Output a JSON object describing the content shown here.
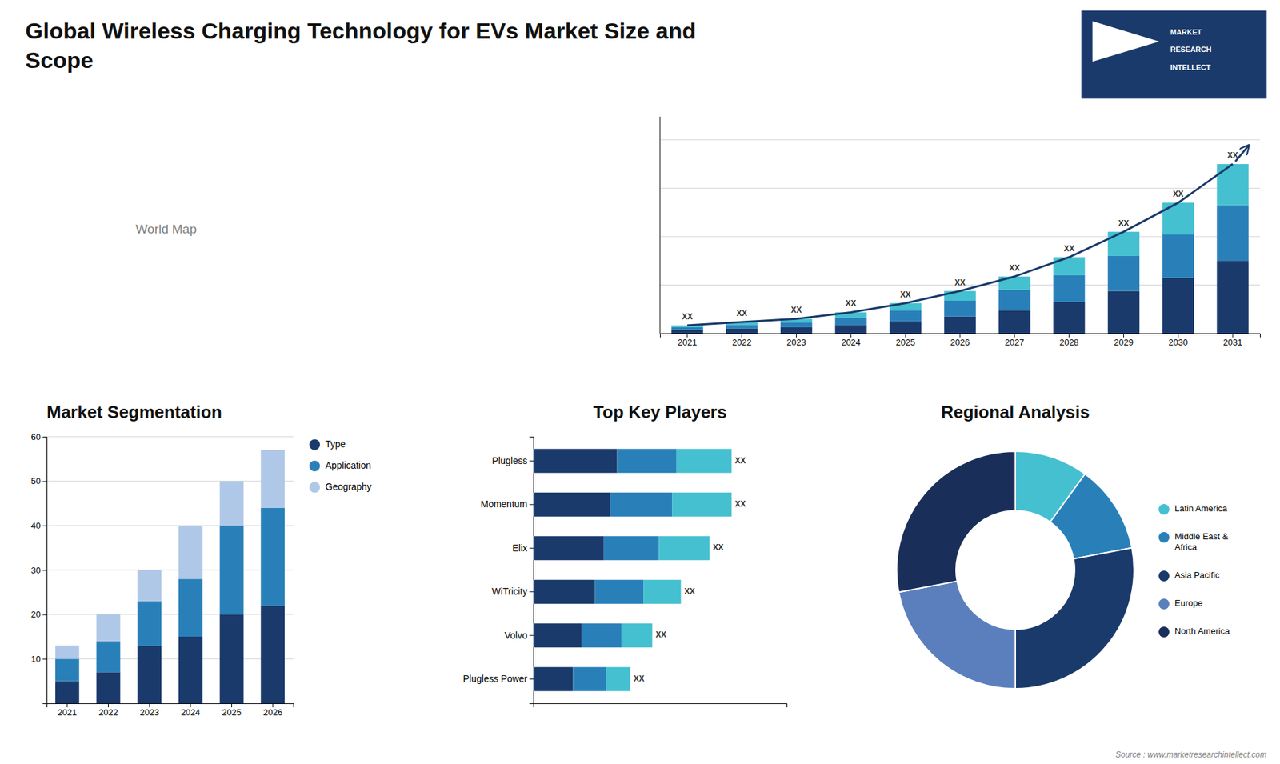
{
  "title": "Global Wireless Charging Technology for EVs Market Size and\nScope",
  "annotations": [
    "Source : www.marketresearchintellect.com",
    "MARKET",
    "RESEARCH",
    "INTELLECT"
  ],
  "chart_data": [
    {
      "type": "map",
      "annotations": [
        "World Map"
      ]
    },
    {
      "type": "bar",
      "stacked": true,
      "categories": [
        "2021",
        "2022",
        "2023",
        "2024",
        "2025",
        "2026",
        "2027",
        "2028",
        "2029",
        "2030",
        "2031"
      ],
      "series": [
        {
          "color": "#1a3a6b",
          "values": [
            1.5,
            2.0,
            2.5,
            3.5,
            5.0,
            7.0,
            9.5,
            13.0,
            17.5,
            23.0,
            30.0
          ]
        },
        {
          "color": "#2980b9",
          "values": [
            1.0,
            1.5,
            2.0,
            3.0,
            4.5,
            6.5,
            8.5,
            11.0,
            14.5,
            18.0,
            23.0
          ]
        },
        {
          "color": "#45c0d0",
          "values": [
            0.8,
            1.2,
            1.5,
            2.2,
            3.0,
            4.0,
            5.5,
            7.5,
            10.0,
            13.0,
            17.0
          ]
        },
        {
          "type": "line",
          "color": "#1a3a6b",
          "values": [
            3.3,
            4.7,
            6.0,
            8.7,
            12.5,
            17.5,
            23.5,
            31.5,
            42.0,
            54.0,
            70.0
          ],
          "value_labels": [
            "XX",
            "XX",
            "XX",
            "XX",
            "XX",
            "XX",
            "XX",
            "XX",
            "XX",
            "XX",
            "XX"
          ]
        }
      ],
      "ylim": [
        0,
        89.6
      ],
      "yticks": [
        0,
        20,
        40,
        60,
        80
      ],
      "grid": true,
      "tick_labels": "x"
    },
    {
      "type": "bar",
      "title": "Market Segmentation",
      "stacked": true,
      "categories": [
        "2021",
        "2022",
        "2023",
        "2024",
        "2025",
        "2026"
      ],
      "series": [
        {
          "name": "Type",
          "color": "#1a3a6b",
          "values": [
            5,
            7,
            13,
            15,
            20,
            22
          ]
        },
        {
          "name": "Application",
          "color": "#2980b9",
          "values": [
            5,
            7,
            10,
            13,
            20,
            22
          ]
        },
        {
          "name": "Geography",
          "color": "#b0c8e8",
          "values": [
            3,
            6,
            7,
            12,
            10,
            13
          ]
        }
      ],
      "ylim": [
        0,
        60
      ],
      "yticks": [
        10,
        20,
        30,
        40,
        50,
        60
      ],
      "grid": true,
      "legend": "right"
    },
    {
      "type": "bar",
      "title": "Top Key Players",
      "orientation": "horizontal",
      "stacked": true,
      "categories": [
        "Plugless",
        "Momentum",
        "Elix",
        "WiTricity",
        "Volvo",
        "Plugless Power"
      ],
      "series": [
        {
          "color": "#1a3a6b",
          "values": [
            0.38,
            0.35,
            0.32,
            0.28,
            0.22,
            0.18
          ]
        },
        {
          "color": "#2980b9",
          "values": [
            0.27,
            0.28,
            0.25,
            0.22,
            0.18,
            0.15
          ]
        },
        {
          "color": "#45c0d0",
          "values": [
            0.25,
            0.27,
            0.23,
            0.17,
            0.14,
            0.11
          ],
          "value_labels": [
            "XX",
            "XX",
            "XX",
            "XX",
            "XX",
            "XX"
          ]
        }
      ],
      "xlim": [
        0,
        1.15
      ],
      "tick_labels": "y"
    },
    {
      "type": "pie",
      "title": "Regional Analysis",
      "categories": [
        "Latin America",
        "Middle East &\nAfrica",
        "Asia Pacific",
        "Europe",
        "North America"
      ],
      "values": [
        0.1,
        0.12,
        0.28,
        0.22,
        0.28
      ],
      "colors": [
        "#45c0d0",
        "#2980b9",
        "#1a3a6b",
        "#5b7fbd",
        "#1a2e5a"
      ],
      "legend": "right"
    }
  ]
}
